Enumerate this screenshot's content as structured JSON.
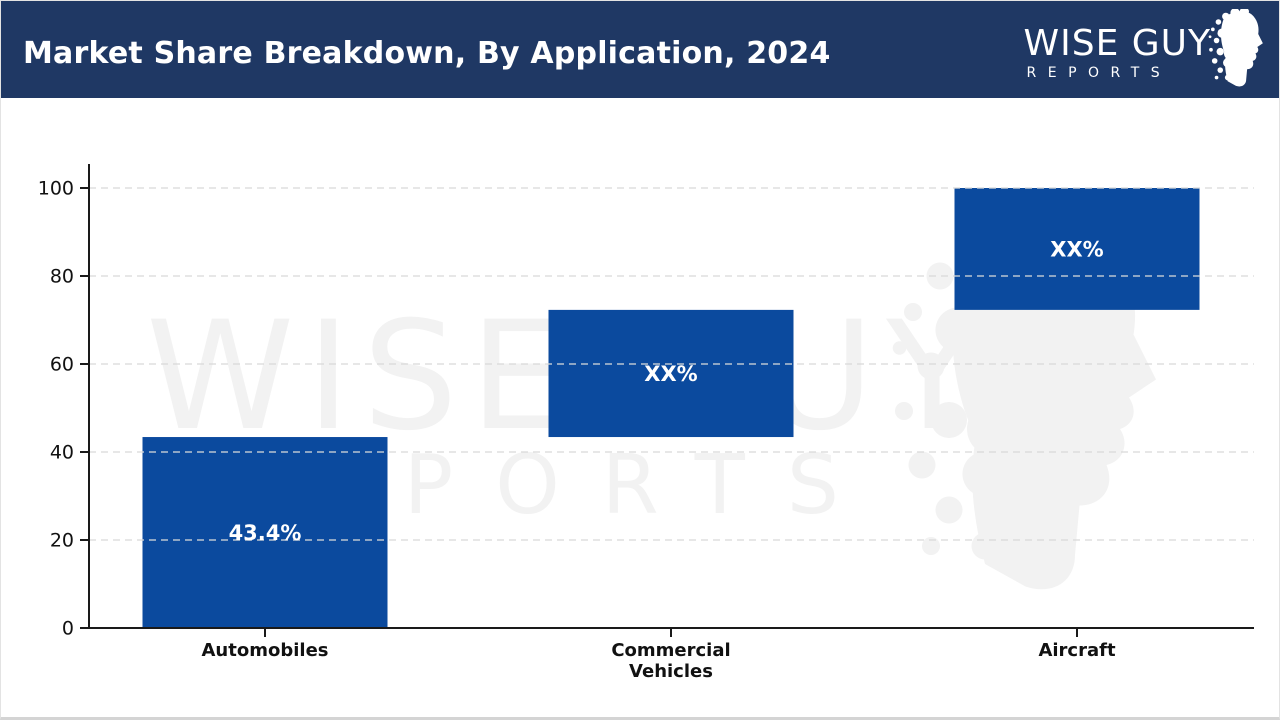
{
  "header": {
    "title": "Market Share Breakdown, By Application, 2024",
    "bg_color": "#1f3864",
    "text_color": "#ffffff",
    "logo": {
      "name": "WISE GUY",
      "sub": "REPORTS"
    }
  },
  "watermark": {
    "name": "WISE GUY",
    "sub": "REPORTS"
  },
  "chart_data": {
    "type": "bar",
    "subtype": "waterfall",
    "title": "Market Share Breakdown, By Application, 2024",
    "categories": [
      "Automobiles",
      "Commercial Vehicles",
      "Aircraft"
    ],
    "category_label_lines": [
      [
        "Automobiles"
      ],
      [
        "Commercial",
        "Vehicles"
      ],
      [
        "Aircraft"
      ]
    ],
    "bars": [
      {
        "category": "Automobiles",
        "start": 0,
        "end": 43.4,
        "label": "43.4%"
      },
      {
        "category": "Commercial Vehicles",
        "start": 43.4,
        "end": 72.3,
        "label": "XX%"
      },
      {
        "category": "Aircraft",
        "start": 72.3,
        "end": 100,
        "label": "XX%"
      }
    ],
    "ylim": [
      0,
      100
    ],
    "yticks": [
      0,
      20,
      40,
      60,
      80,
      100
    ],
    "xlabel": "",
    "ylabel": "",
    "bar_color": "#0b4a9e",
    "bar_label_color": "#ffffff",
    "grid": true,
    "grid_color": "#d9d9d9",
    "axis_color": "#1a1a1a",
    "legend": false
  }
}
